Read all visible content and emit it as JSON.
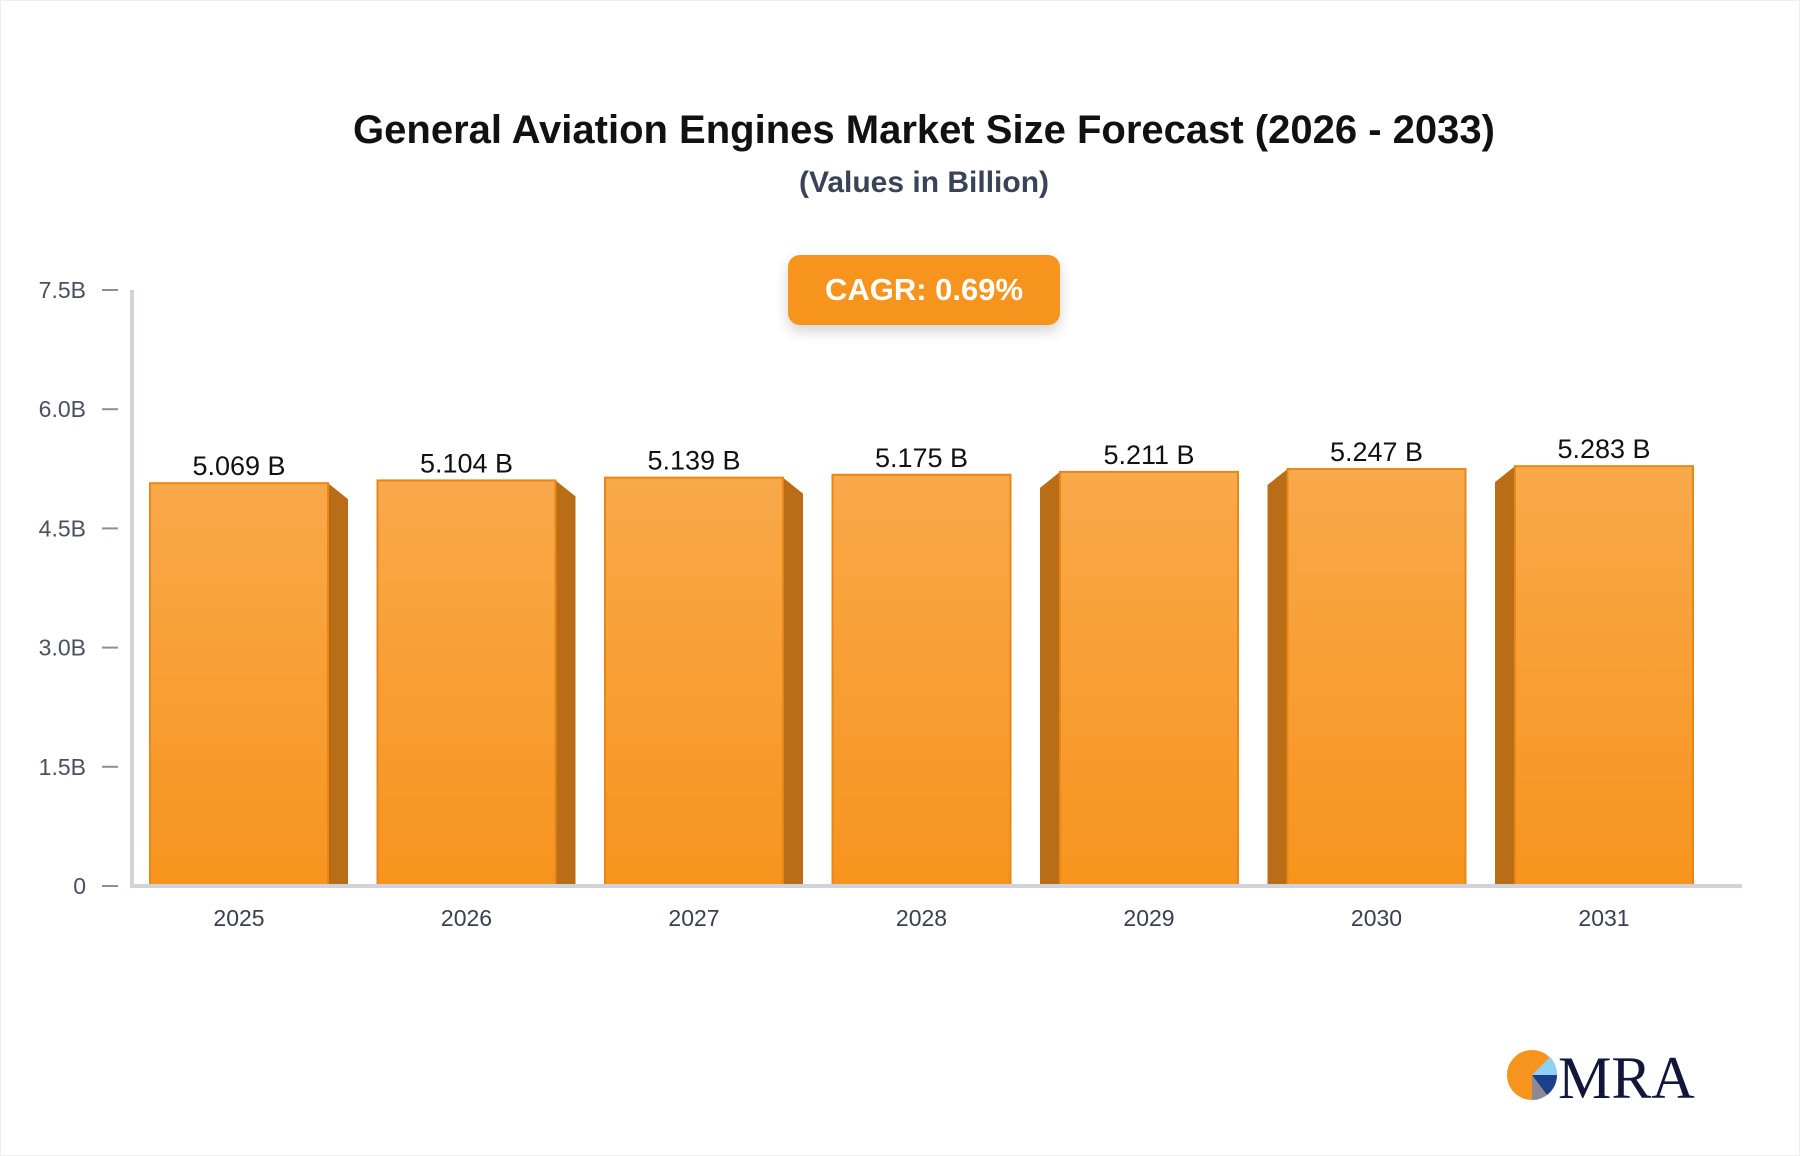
{
  "chart_data": {
    "type": "bar",
    "title": "General Aviation Engines Market Size Forecast (2026 - 2033)",
    "subtitle": "(Values in Billion)",
    "annotation": "CAGR: 0.69%",
    "categories": [
      "2025",
      "2026",
      "2027",
      "2028",
      "2029",
      "2030",
      "2031"
    ],
    "values": [
      5.069,
      5.104,
      5.139,
      5.175,
      5.211,
      5.247,
      5.283
    ],
    "data_labels": [
      "5.069 B",
      "5.104 B",
      "5.139 B",
      "5.175 B",
      "5.211 B",
      "5.247 B",
      "5.283 B"
    ],
    "yticks": [
      0,
      1.5,
      3.0,
      4.5,
      6.0,
      7.5
    ],
    "ytick_labels": [
      "0",
      "1.5B",
      "3.0B",
      "4.5B",
      "6.0B",
      "7.5B"
    ],
    "ylim": [
      0,
      7.5
    ],
    "xlabel": "",
    "ylabel": "",
    "grid": false,
    "colors": {
      "bar_top": "#f8a94a",
      "bar_bottom": "#f7941d",
      "bar_side": "#b96d17",
      "axis": "#d0d3da"
    }
  },
  "logo": {
    "text": "MRA"
  }
}
